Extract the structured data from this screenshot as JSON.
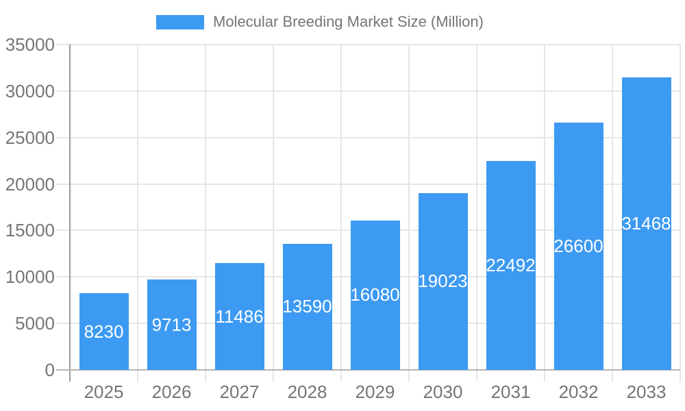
{
  "legend": {
    "label": "Molecular Breeding Market Size (Million)"
  },
  "chart_data": {
    "type": "bar",
    "title": "Molecular Breeding Market Size (Million)",
    "categories": [
      "2025",
      "2026",
      "2027",
      "2028",
      "2029",
      "2030",
      "2031",
      "2032",
      "2033"
    ],
    "values": [
      8230,
      9713,
      11486,
      13590,
      16080,
      19023,
      22492,
      26600,
      31468
    ],
    "xlabel": "",
    "ylabel": "",
    "ylim": [
      0,
      35000
    ],
    "ytick_step": 5000,
    "ytick_labels": [
      "0",
      "5000",
      "10000",
      "15000",
      "20000",
      "25000",
      "30000",
      "35000"
    ],
    "grid": true,
    "legend_position": "top",
    "colors": {
      "bar": "#3D9AF2",
      "value_label": "#FFFFFF",
      "axis_text": "#757575",
      "gridline": "#E6E6E6",
      "y_axis_line": "#9A9A9A",
      "x_axis_line": "#B4B4B4",
      "background": "#FFFFFF"
    }
  }
}
